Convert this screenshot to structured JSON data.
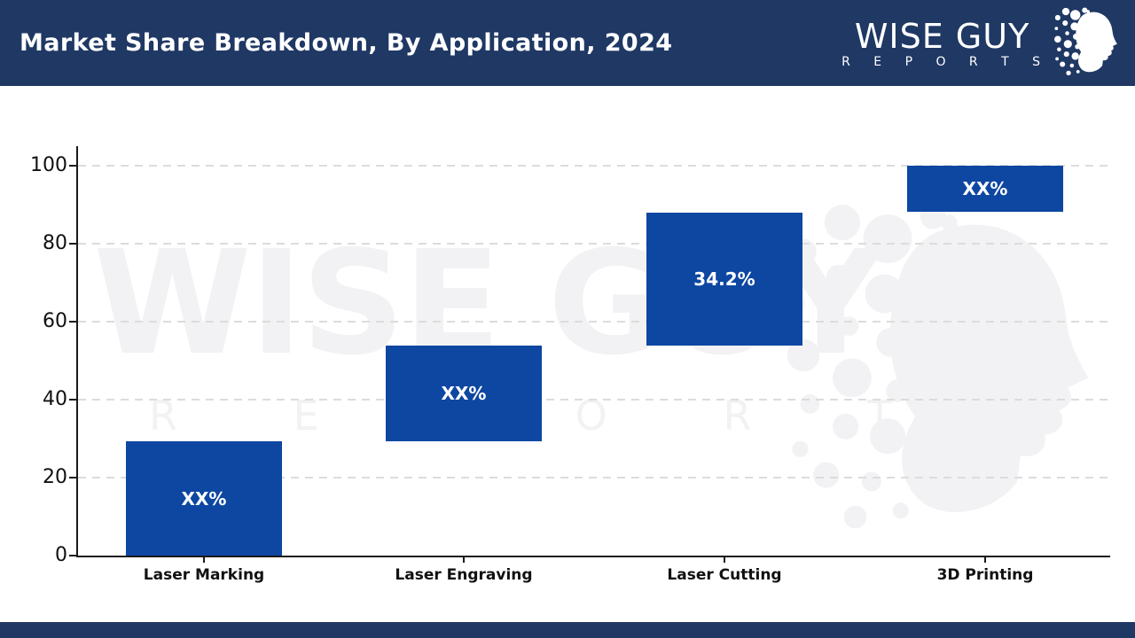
{
  "header": {
    "title": "Market Share Breakdown, By Application, 2024",
    "logo": {
      "line1": "WISE GUY",
      "line2": "R E P O R T S"
    }
  },
  "watermark": {
    "line1": "WISE GUY",
    "line2": "R E P O R T S"
  },
  "chart_data": {
    "type": "bar",
    "subtype": "floating-waterfall",
    "title": "Market Share Breakdown, By Application, 2024",
    "categories": [
      "Laser Marking",
      "Laser Engraving",
      "Laser Cutting",
      "3D Printing"
    ],
    "segments": [
      {
        "category": "Laser Marking",
        "start": 0,
        "end": 29.3,
        "label": "XX%"
      },
      {
        "category": "Laser Engraving",
        "start": 29.4,
        "end": 53.9,
        "label": "XX%"
      },
      {
        "category": "Laser Cutting",
        "start": 53.8,
        "end": 88.0,
        "label": "34.2%"
      },
      {
        "category": "3D Printing",
        "start": 88.2,
        "end": 100,
        "label": "XX%"
      }
    ],
    "ylim": [
      0,
      100
    ],
    "yticks": [
      0,
      20,
      40,
      60,
      80,
      100
    ],
    "xlabel": "",
    "ylabel": "",
    "grid": "horizontal-dashed",
    "legend": "none"
  },
  "colors": {
    "header_bg": "#1f3864",
    "footer_bg": "#1f3864",
    "bar": "#0d47a1",
    "bar_label": "#ffffff",
    "grid": "#dcdcdc",
    "axis": "#1a1a1a",
    "tick_label": "#111111",
    "watermark": "#f2f2f4",
    "background": "#ffffff"
  }
}
